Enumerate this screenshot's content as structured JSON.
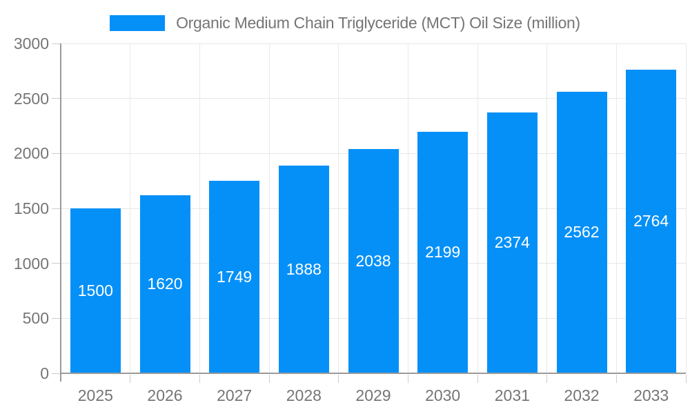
{
  "chart_data": {
    "type": "bar",
    "title": "Organic Medium Chain Triglyceride (MCT) Oil Size (million)",
    "categories": [
      "2025",
      "2026",
      "2027",
      "2028",
      "2029",
      "2030",
      "2031",
      "2032",
      "2033"
    ],
    "values": [
      1500,
      1620,
      1749,
      1888,
      2038,
      2199,
      2374,
      2562,
      2764
    ],
    "xlabel": "",
    "ylabel": "",
    "ylim": [
      0,
      3000
    ],
    "ytick_interval": 500,
    "ytick_labels": [
      "0",
      "500",
      "1000",
      "1500",
      "2000",
      "2500",
      "3000"
    ],
    "grid": true,
    "legend_position": "top-center",
    "value_label_style": "inside-center-white"
  },
  "colors": {
    "bar": "#0590F8",
    "axis_line": "#9a9a9a",
    "gridline_h": "#e6e6e6",
    "gridline_v": "#e9e9e9",
    "tick": "#cccccc",
    "axis_text": "#757575",
    "title_text": "#757575",
    "value_label_text": "#ffffff",
    "background": "#ffffff"
  }
}
